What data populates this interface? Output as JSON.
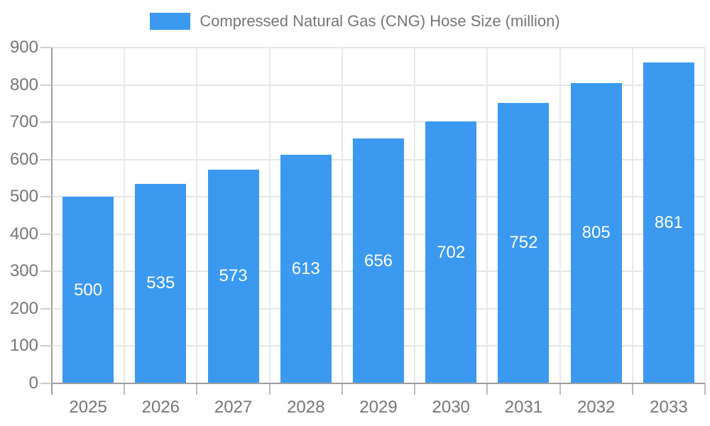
{
  "legend": {
    "label": "Compressed Natural Gas (CNG) Hose Size (million)",
    "swatch_color": "#3B99F0"
  },
  "chart_data": {
    "type": "bar",
    "title": "Compressed Natural Gas (CNG) Hose Size (million)",
    "categories": [
      "2025",
      "2026",
      "2027",
      "2028",
      "2029",
      "2030",
      "2031",
      "2032",
      "2033"
    ],
    "values": [
      500,
      535,
      573,
      613,
      656,
      702,
      752,
      805,
      861
    ],
    "xlabel": "",
    "ylabel": "",
    "ylim": [
      0,
      900
    ],
    "ytick_interval": 100,
    "yticks": [
      0,
      100,
      200,
      300,
      400,
      500,
      600,
      700,
      800,
      900
    ],
    "grid": true,
    "legend_position": "top",
    "bar_color": "#3B99F0",
    "value_label_color": "#FFFFFF",
    "axis_text_color": "#757575",
    "gridline_color": "#E6E6E6",
    "axis_line_color": "#9E9E9E",
    "background_color": "#FFFFFF"
  }
}
